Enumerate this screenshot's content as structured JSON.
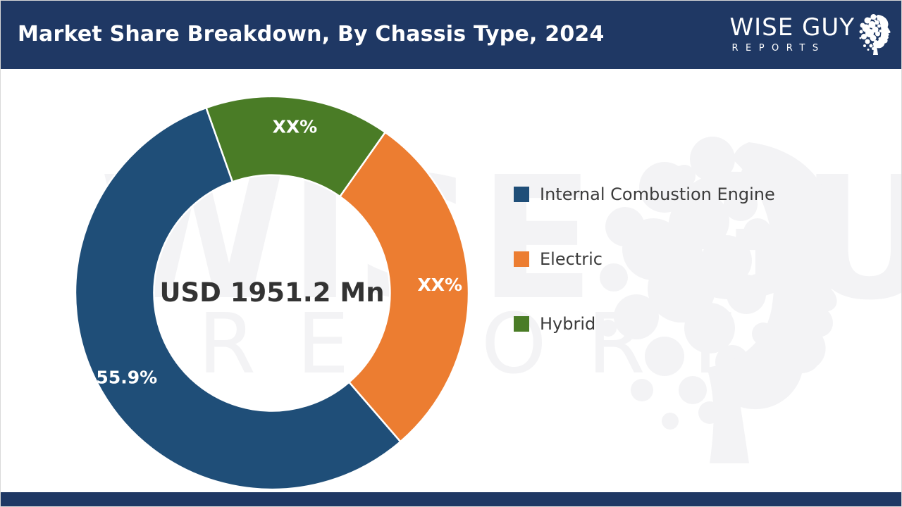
{
  "header": {
    "title": "Market Share Breakdown, By Chassis Type, 2024",
    "logo": {
      "line1": "WISE GUY",
      "line2": "REPORTS"
    }
  },
  "watermark": {
    "line1": "WISE GUY",
    "line2": "REPORTS"
  },
  "chart_data": {
    "type": "pie",
    "subtype": "donut",
    "title": "Market Share Breakdown, By Chassis Type, 2024",
    "center_label": "USD 1951.2 Mn",
    "start_angle_deg": 139.2,
    "clockwise": true,
    "inner_radius_ratio": 0.6,
    "legend_position": "right",
    "segments": [
      {
        "label": "Internal Combustion Engine",
        "value_pct": 55.9,
        "data_label": "55.9%",
        "color": "#1f4e78"
      },
      {
        "label": "Hybrid",
        "value_pct": 15.2,
        "data_label": "XX%",
        "color": "#4a7c26"
      },
      {
        "label": "Electric",
        "value_pct": 28.9,
        "data_label": "XX%",
        "color": "#ec7d31"
      }
    ]
  },
  "legend": {
    "items": [
      {
        "label": "Internal Combustion Engine",
        "color": "#1f4e78"
      },
      {
        "label": "Electric",
        "color": "#ec7d31"
      },
      {
        "label": "Hybrid",
        "color": "#4a7c26"
      }
    ]
  },
  "colors": {
    "header_bar": "#1f3864",
    "footer_bar": "#1f3864",
    "center_text": "#333333",
    "legend_text": "#3b3b3b",
    "watermark": "#f3f3f5"
  }
}
